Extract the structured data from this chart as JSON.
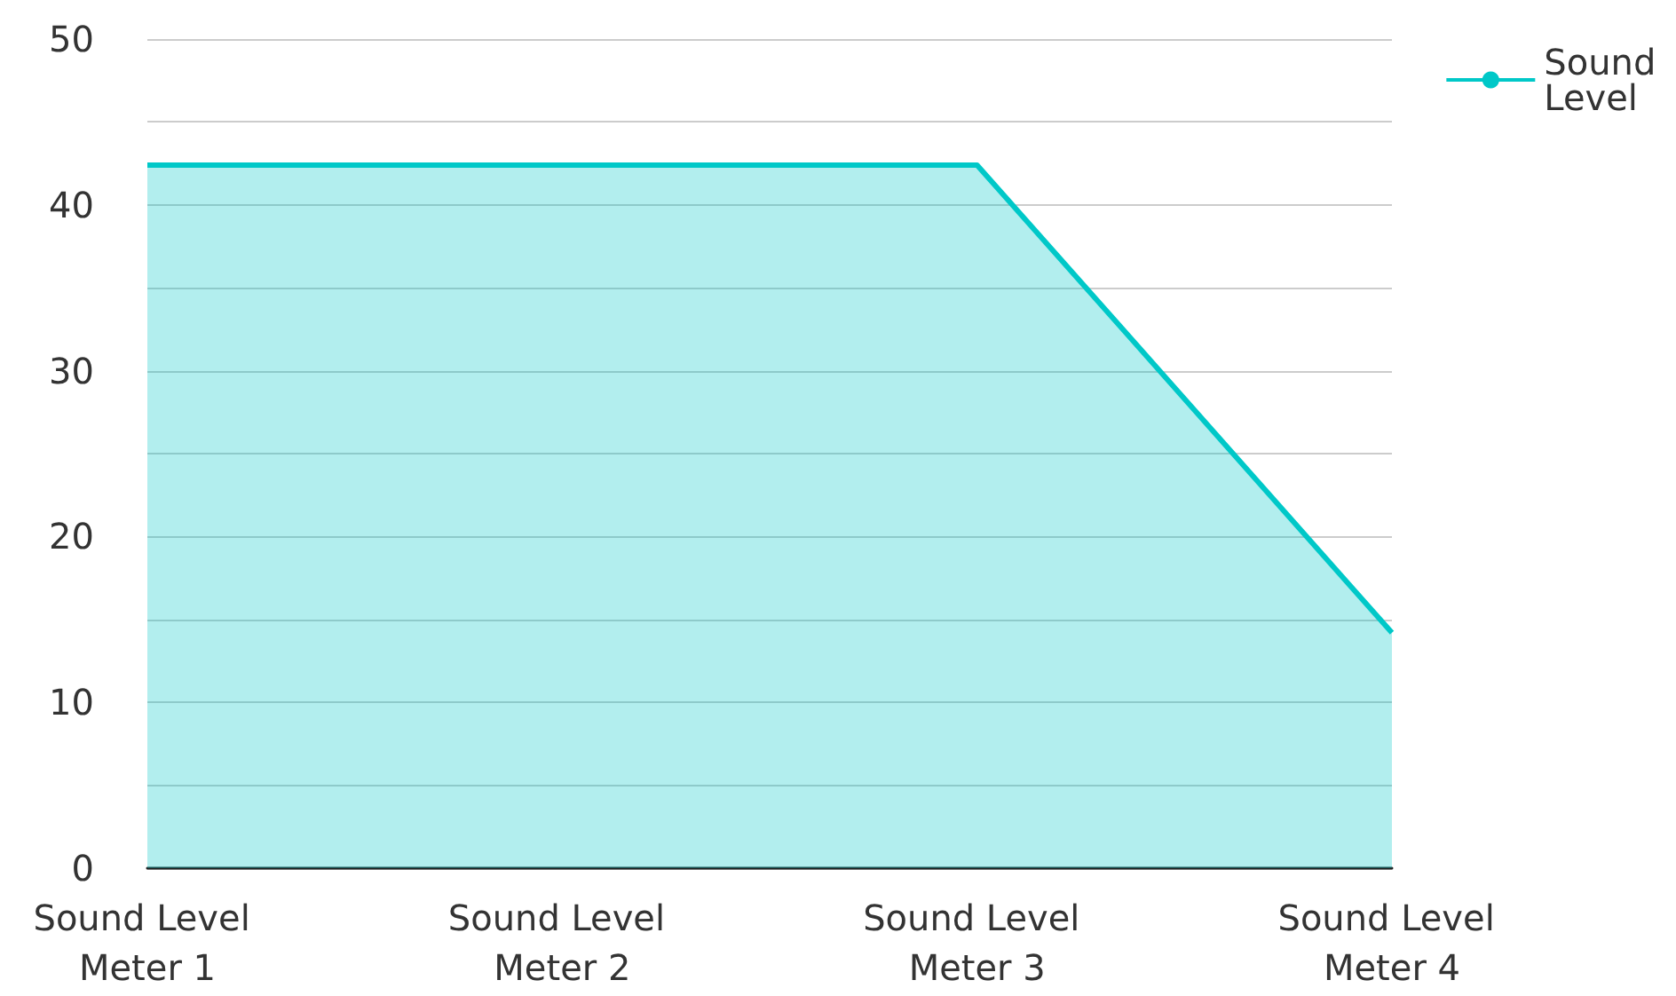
{
  "chart_data": {
    "type": "area",
    "categories": [
      "Sound Level Meter 1",
      "Sound Level Meter 2",
      "Sound Level Meter 3",
      "Sound Level Meter 4"
    ],
    "series": [
      {
        "name": "Sound Level",
        "color": "#00c8c8",
        "values": [
          42.4,
          42.4,
          42.4,
          14.2
        ]
      }
    ],
    "ylim": [
      0,
      50
    ],
    "yticks": [
      0,
      {
        "value": 5,
        "label": null
      },
      10,
      {
        "value": 15,
        "label": null
      },
      20,
      {
        "value": 25,
        "label": null
      },
      30,
      {
        "value": 35,
        "label": null
      },
      40,
      {
        "value": 45,
        "label": null
      },
      50
    ],
    "grid": "y",
    "legend": "top right"
  }
}
